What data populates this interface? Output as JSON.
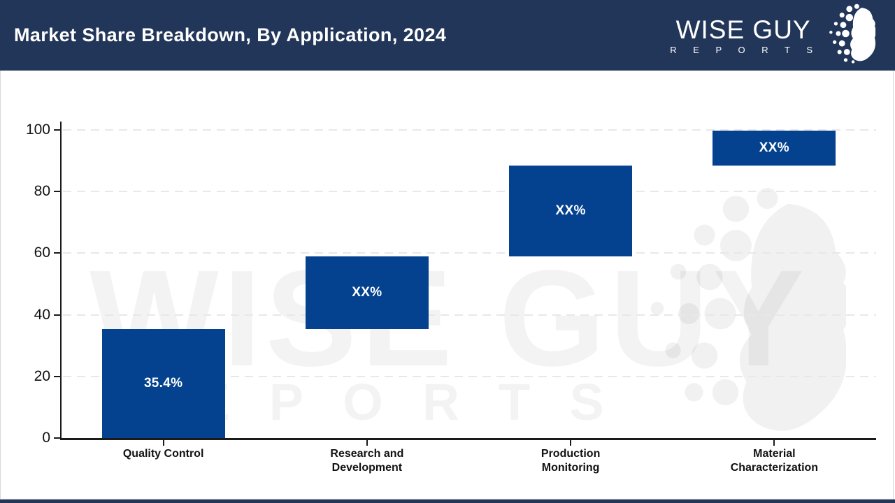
{
  "header": {
    "title": "Market Share Breakdown, By Application, 2024",
    "logo_main": "WISE GUY",
    "logo_sub": "R E P O R T S"
  },
  "watermark": {
    "line1": "WISE GUY",
    "line2": "REPORTS"
  },
  "colors": {
    "header_navy": "#223659",
    "bar_blue": "#04418f",
    "grid_gray": "#e8e8e8",
    "axis_black": "#1a1a1a"
  },
  "chart_data": {
    "type": "bar",
    "subtype": "waterfall",
    "title": "Market Share Breakdown, By Application, 2024",
    "categories": [
      "Quality Control",
      "Research and\nDevelopment",
      "Production\nMonitoring",
      "Material\nCharacterization"
    ],
    "bars": [
      {
        "category": "Quality Control",
        "start": 0,
        "end": 35.4,
        "label": "35.4%"
      },
      {
        "category": "Research and Development",
        "start": 35.4,
        "end": 59,
        "label": "XX%"
      },
      {
        "category": "Production Monitoring",
        "start": 59,
        "end": 88.4,
        "label": "XX%"
      },
      {
        "category": "Material Characterization",
        "start": 88.4,
        "end": 99.8,
        "label": "XX%"
      }
    ],
    "xlabel": "",
    "ylabel": "",
    "y_ticks": [
      0,
      20,
      40,
      60,
      80,
      100
    ],
    "ylim": [
      0,
      105
    ],
    "grid": "horizontal-dashed",
    "legend": "none",
    "bar_color": "#04418f",
    "bar_label_color": "#ffffff"
  }
}
